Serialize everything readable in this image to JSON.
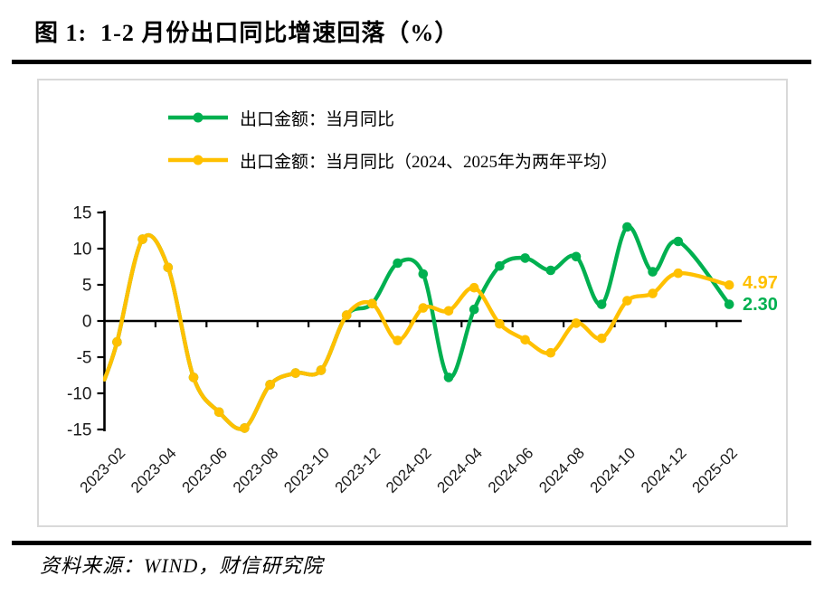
{
  "header": {
    "title": "图 1:  1-2 月份出口同比增速回落（%）"
  },
  "footer": {
    "source": "资料来源：WIND，财信研究院"
  },
  "chart_data": {
    "type": "line",
    "title": "1-2 月份出口同比增速回落（%）",
    "legend_position": "top-left-inside",
    "grid": "off",
    "smoothed_lines": true,
    "x_axis_note": "monthly categories, axis line drawn at y=0, tick labels every 2 months rotated 45°; 2025-01 has no data point",
    "categories": [
      "2023-02",
      "2023-03",
      "2023-04",
      "2023-05",
      "2023-06",
      "2023-07",
      "2023-08",
      "2023-09",
      "2023-10",
      "2023-11",
      "2023-12",
      "2024-01",
      "2024-02",
      "2024-03",
      "2024-04",
      "2024-05",
      "2024-06",
      "2024-07",
      "2024-08",
      "2024-09",
      "2024-10",
      "2024-11",
      "2024-12",
      "2025-01",
      "2025-02"
    ],
    "x_tick_labels": [
      "2023-02",
      "2023-04",
      "2023-06",
      "2023-08",
      "2023-10",
      "2023-12",
      "2024-02",
      "2024-04",
      "2024-06",
      "2024-08",
      "2024-10",
      "2024-12",
      "2025-02"
    ],
    "y_ticks": [
      15,
      10,
      5,
      0,
      -5,
      -10,
      -15
    ],
    "ylim": [
      -15,
      15
    ],
    "edge_entry_value": -8.1,
    "series": [
      {
        "name": "出口金额：当月同比",
        "color": "#00B050",
        "values": [
          -2.9,
          11.3,
          7.4,
          -7.8,
          -12.6,
          -14.8,
          -8.8,
          -7.2,
          -6.8,
          0.8,
          2.4,
          8.0,
          6.5,
          -7.8,
          1.6,
          7.6,
          8.7,
          7.0,
          8.9,
          2.3,
          13.0,
          6.8,
          11.0,
          null,
          2.3
        ]
      },
      {
        "name": "出口金额：当月同比（2024、2025年为两年平均）",
        "color": "#FFC000",
        "values": [
          -2.9,
          11.3,
          7.4,
          -7.8,
          -12.6,
          -14.8,
          -8.8,
          -7.2,
          -6.8,
          0.8,
          2.4,
          -2.7,
          1.8,
          1.4,
          4.6,
          -0.4,
          -2.6,
          -4.4,
          -0.3,
          -2.4,
          2.8,
          3.8,
          6.6,
          null,
          4.97
        ]
      }
    ],
    "end_labels": {
      "gold": "4.97",
      "green": "2.30"
    }
  }
}
